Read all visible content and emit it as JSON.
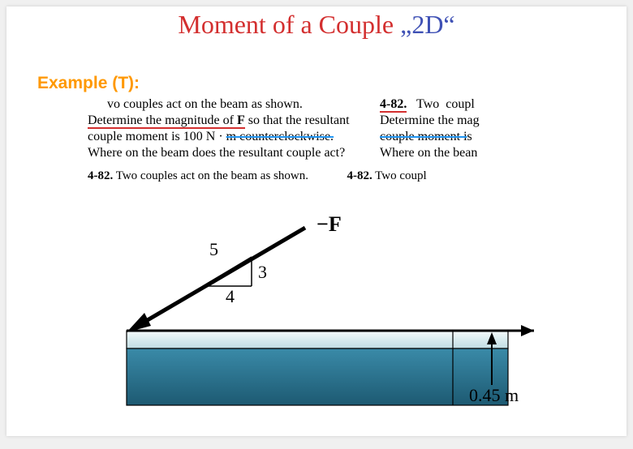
{
  "title": {
    "part1": "Moment of a Couple ",
    "part2": "„2D“"
  },
  "example_label": "Example (T):",
  "left_text": {
    "line1a": "      vo couples act on the beam as shown.",
    "line2_underlined": "Determine  the  magnitude  of  ",
    "line2_F": "F",
    "line2_rest": "  so  that  the resultant",
    "line3a": "couple  moment  is  100 N · ",
    "line3_struck": "m counterclockwise.",
    "line4": "Where on the beam does the resultant couple act?"
  },
  "right_text": {
    "num": "4-82.",
    "l1a": "   Two  coupl",
    "l2": "Determine  the  mag",
    "l3_struck": "couple  moment  i",
    "l3_rest": "s",
    "l4": "Where on the bean"
  },
  "cut_left": "4-82.    Two  couples  act  on  the  beam  as  shown.",
  "cut_right": "4-82.    Two  coupl",
  "figure": {
    "minusF": "−F",
    "tri_hyp": "5",
    "tri_opp": "3",
    "tri_adj": "4",
    "dim": "0.45 m",
    "colors": {
      "beam_top_light": "#d9ecef",
      "beam_top_highlight": "#f6fbfc",
      "beam_side": "#2d7d9a",
      "beam_side_dark": "#1d5a72",
      "stroke": "#000000"
    }
  }
}
